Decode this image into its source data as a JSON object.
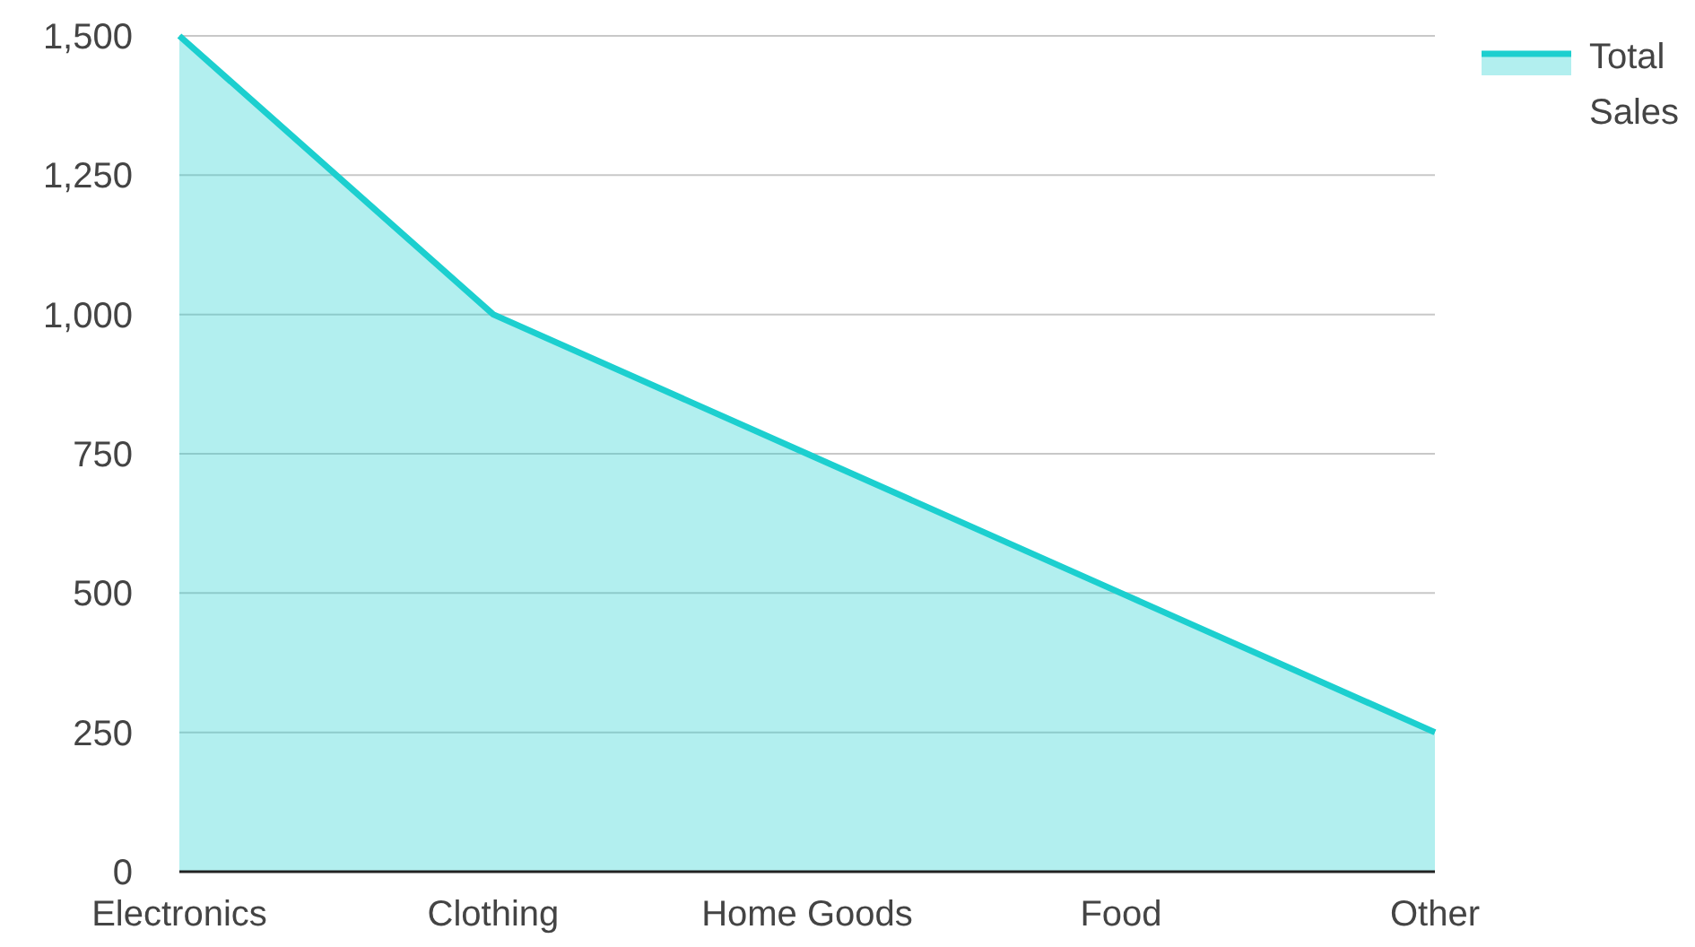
{
  "chart_data": {
    "type": "area",
    "categories": [
      "Electronics",
      "Clothing",
      "Home Goods",
      "Food",
      "Other"
    ],
    "series": [
      {
        "name": "Total Sales",
        "color": "#1ccfcf",
        "values": [
          1500,
          1000,
          750,
          500,
          250
        ]
      }
    ],
    "ylim": [
      0,
      1500
    ],
    "yticks": [
      0,
      250,
      500,
      750,
      {
        "value": 1000,
        "label": "1,000"
      },
      {
        "value": 1250,
        "label": "1,250"
      },
      {
        "value": 1500,
        "label": "1,500"
      }
    ],
    "grid": "y",
    "legend": "top right"
  }
}
